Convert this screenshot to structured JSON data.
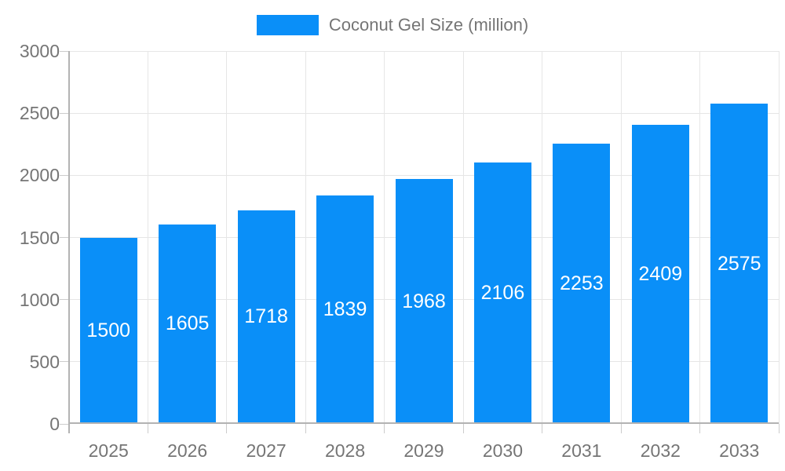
{
  "chart_data": {
    "type": "bar",
    "title": "",
    "xlabel": "",
    "ylabel": "",
    "legend_label": "Coconut Gel Size (million)",
    "legend_position": "top",
    "categories": [
      "2025",
      "2026",
      "2027",
      "2028",
      "2029",
      "2030",
      "2031",
      "2032",
      "2033"
    ],
    "series": [
      {
        "name": "Coconut Gel Size (million)",
        "values": [
          1500,
          1605,
          1718,
          1839,
          1968,
          2106,
          2253,
          2409,
          2575
        ]
      }
    ],
    "ylim": [
      0,
      3000
    ],
    "yticks": [
      0,
      500,
      1000,
      1500,
      2000,
      2500,
      3000
    ],
    "grid": true,
    "bar_labels_shown": true,
    "colors": {
      "bar": "#0a8ff8",
      "bar_label": "#ffffff",
      "axis_text": "#757575",
      "legend_text": "#757575",
      "grid_line": "#e6e6e6",
      "tick_line": "#cccccc",
      "axis_line": "#b3b3b3"
    }
  }
}
